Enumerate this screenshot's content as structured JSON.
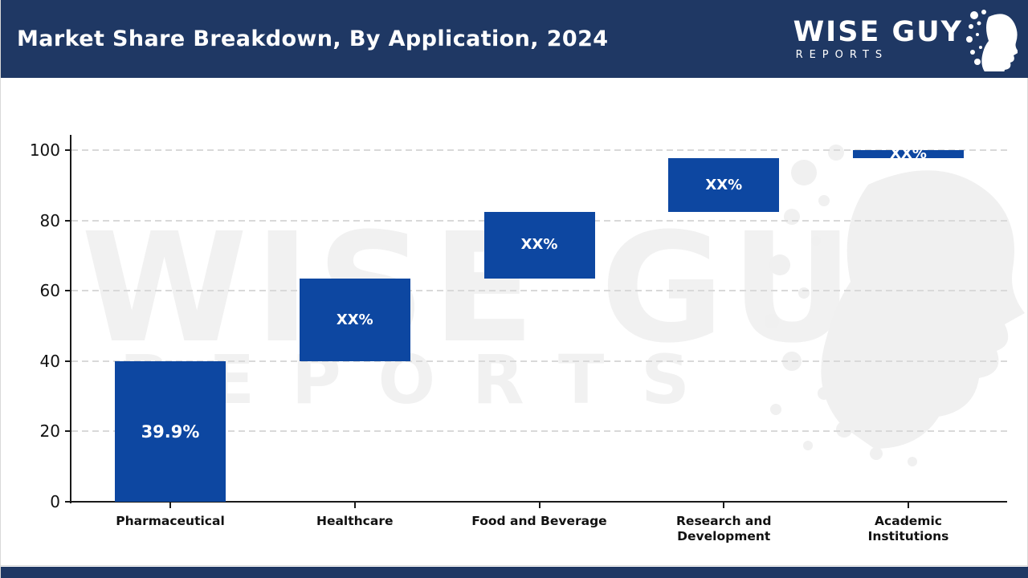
{
  "header": {
    "title": "Market Share Breakdown, By Application, 2024",
    "logo": {
      "line1": "WISE GUY",
      "line2": "REPORTS"
    }
  },
  "watermark": {
    "line1": "WISE GUY",
    "line2": "REPORTS"
  },
  "colors": {
    "header_bg": "#1f3864",
    "footer_bg": "#1f3864",
    "bar": "#0d47a1",
    "bar_label": "#ffffff",
    "axis": "#1a1a1a",
    "gridline": "#d9d9d9",
    "watermark": "#f1f1f1",
    "background": "#ffffff"
  },
  "chart_data": {
    "type": "bar",
    "subtype": "waterfall",
    "title": "Market Share Breakdown, By Application, 2024",
    "categories": [
      [
        "Pharmaceutical"
      ],
      [
        "Healthcare"
      ],
      [
        "Food and Beverage"
      ],
      [
        "Research and",
        "Development"
      ],
      [
        "Academic",
        "Institutions"
      ]
    ],
    "segments": [
      {
        "category": "Pharmaceutical",
        "start": 0,
        "end": 39.9,
        "label": "39.9%"
      },
      {
        "category": "Healthcare",
        "start": 39.9,
        "end": 63.5,
        "label": "XX%"
      },
      {
        "category": "Food and Beverage",
        "start": 63.5,
        "end": 82.4,
        "label": "XX%"
      },
      {
        "category": "Research and Development",
        "start": 82.4,
        "end": 97.7,
        "label": "XX%"
      },
      {
        "category": "Academic Institutions",
        "start": 97.7,
        "end": 100,
        "label": "XX%"
      }
    ],
    "yticks": [
      0,
      20,
      40,
      60,
      80,
      100
    ],
    "ylim": [
      0,
      105
    ],
    "xlabel": "",
    "ylabel": "",
    "grid": "horizontal-dashed",
    "legend": "none"
  }
}
